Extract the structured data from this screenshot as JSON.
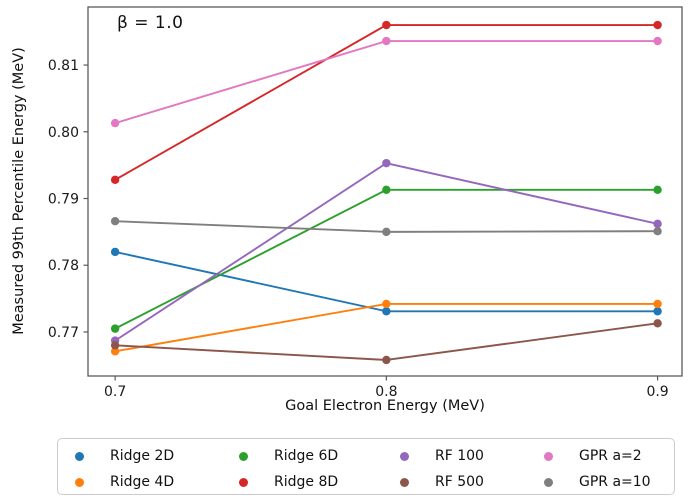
{
  "chart_data": {
    "type": "line",
    "annotation": "β = 1.0",
    "xlabel": "Goal Electron Energy (MeV)",
    "ylabel": "Measured 99th Percentile Energy (MeV)",
    "x": [
      0.7,
      0.8,
      0.9
    ],
    "xlim": [
      0.69,
      0.909
    ],
    "ylim": [
      0.7634,
      0.8187
    ],
    "xticks": [
      0.7,
      0.8,
      0.9
    ],
    "xtick_labels": [
      "0.7",
      "0.8",
      "0.9"
    ],
    "yticks": [
      0.77,
      0.78,
      0.79,
      0.8,
      0.81
    ],
    "ytick_labels": [
      "0.77",
      "0.78",
      "0.79",
      "0.80",
      "0.81"
    ],
    "grid": false,
    "marker": "circle",
    "legend_position": "bottom",
    "legend_columns": 4,
    "series": [
      {
        "name": "Ridge 2D",
        "color": "#1f77b4",
        "values": [
          0.782,
          0.7731,
          0.7731
        ]
      },
      {
        "name": "Ridge 4D",
        "color": "#ff7f0e",
        "values": [
          0.7671,
          0.7742,
          0.7742
        ]
      },
      {
        "name": "Ridge 6D",
        "color": "#2ca02c",
        "values": [
          0.7705,
          0.7913,
          0.7913
        ]
      },
      {
        "name": "Ridge 8D",
        "color": "#d62728",
        "values": [
          0.7928,
          0.816,
          0.816
        ]
      },
      {
        "name": "RF 100",
        "color": "#9467bd",
        "values": [
          0.7687,
          0.7953,
          0.7862
        ]
      },
      {
        "name": "RF 500",
        "color": "#8c564b",
        "values": [
          0.768,
          0.7658,
          0.7713
        ]
      },
      {
        "name": "GPR a=2",
        "color": "#e377c2",
        "values": [
          0.8013,
          0.8136,
          0.8136
        ]
      },
      {
        "name": "GPR a=10",
        "color": "#7f7f7f",
        "values": [
          0.7866,
          0.785,
          0.7851
        ]
      }
    ],
    "colors": {
      "spine": "#5a5a5a",
      "tick": "#5a5a5a",
      "text": "#1a1a1a",
      "background": "#ffffff",
      "legend_border": "#cccccc"
    }
  }
}
